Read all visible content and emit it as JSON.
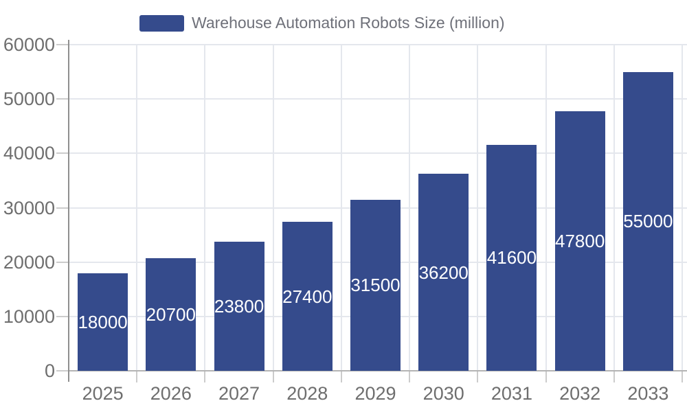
{
  "legend": {
    "items": [
      {
        "label": "Warehouse Automation Robots Size (million)",
        "color": "#354b8c"
      }
    ]
  },
  "chart_data": {
    "type": "bar",
    "title": "",
    "categories": [
      "2025",
      "2026",
      "2027",
      "2028",
      "2029",
      "2030",
      "2031",
      "2032",
      "2033"
    ],
    "series": [
      {
        "name": "Warehouse Automation Robots Size (million)",
        "values": [
          18000,
          20700,
          23800,
          27400,
          31500,
          36200,
          41600,
          47800,
          55000
        ],
        "color": "#354b8c"
      }
    ],
    "xlabel": "",
    "ylabel": "",
    "ylim": [
      0,
      60000
    ],
    "yticks": [
      0,
      10000,
      20000,
      30000,
      40000,
      50000,
      60000
    ],
    "grid": true,
    "legend_position": "top",
    "value_label_position": "inside-center"
  },
  "colors": {
    "bar": "#354b8c",
    "grid_line": "#e4e7ed",
    "axis_line_y": "#8f8f8f",
    "axis_line_x": "#b3b3b3",
    "tick": "#cccccc",
    "tick_label": "#6e6e6e",
    "legend_text": "#6e7079",
    "value_label": "#ffffff",
    "background": "#ffffff"
  }
}
